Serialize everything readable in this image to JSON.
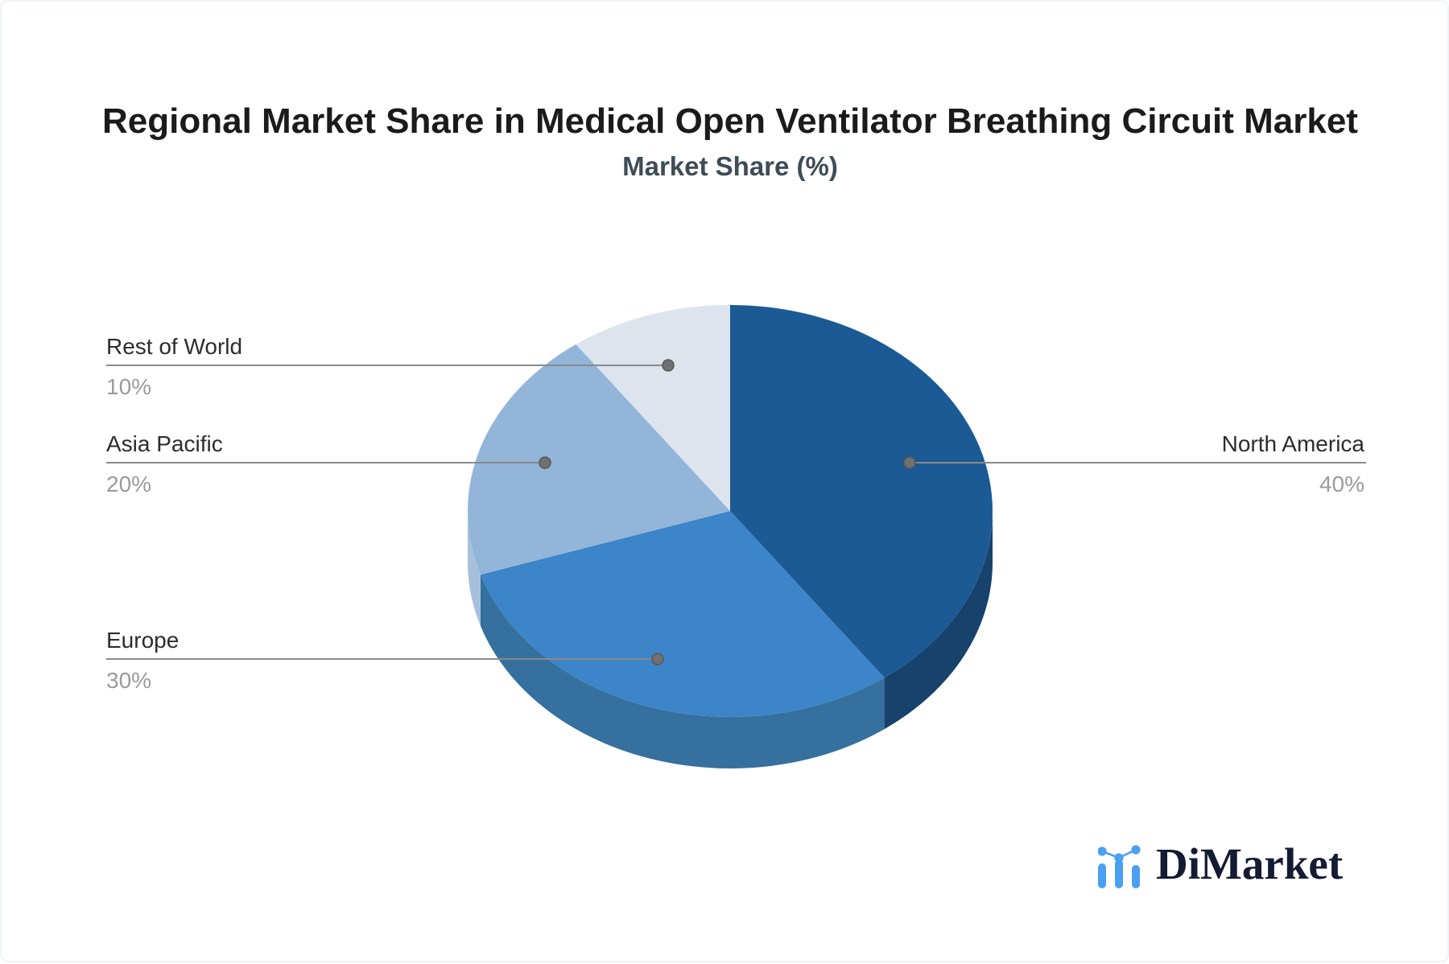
{
  "header": {
    "title": "Regional Market Share in Medical Open Ventilator Breathing Circuit Market",
    "subtitle": "Market Share (%)"
  },
  "chart_data": {
    "type": "pie",
    "style": "3d",
    "title": "Regional Market Share in Medical Open Ventilator Breathing Circuit Market",
    "subtitle": "Market Share (%)",
    "unit": "%",
    "categories": [
      "North America",
      "Europe",
      "Asia Pacific",
      "Rest of World"
    ],
    "values": [
      40,
      30,
      20,
      10
    ],
    "colors": [
      "#1b5a94",
      "#3c85c8",
      "#92b5d9",
      "#dde4ee"
    ],
    "side_colors": [
      "#16426c",
      "#35709f",
      "#a6c0dc",
      "#ccd4df"
    ],
    "start_angle_deg": 90,
    "direction": "clockwise",
    "legend_position": "none",
    "label_style": "callout-lines"
  },
  "callouts": {
    "north_america": {
      "label": "North America",
      "value": "40%"
    },
    "europe": {
      "label": "Europe",
      "value": "30%"
    },
    "asia_pacific": {
      "label": "Asia Pacific",
      "value": "20%"
    },
    "rest_of_world": {
      "label": "Rest of World",
      "value": "10%"
    }
  },
  "logo": {
    "text": "DiMarket",
    "icon": "bar-chart-trend-icon"
  },
  "theme": {
    "accent_blue": "#3c85c8",
    "logo_blue": "#4aa0f2",
    "logo_text_color": "#141b33",
    "callout_line_color": "#8a8a8a",
    "label_text_color": "#2d2d2d",
    "value_text_color": "#9b9b9b",
    "title_color": "#1b1b1b",
    "subtitle_color": "#3e4c56"
  }
}
